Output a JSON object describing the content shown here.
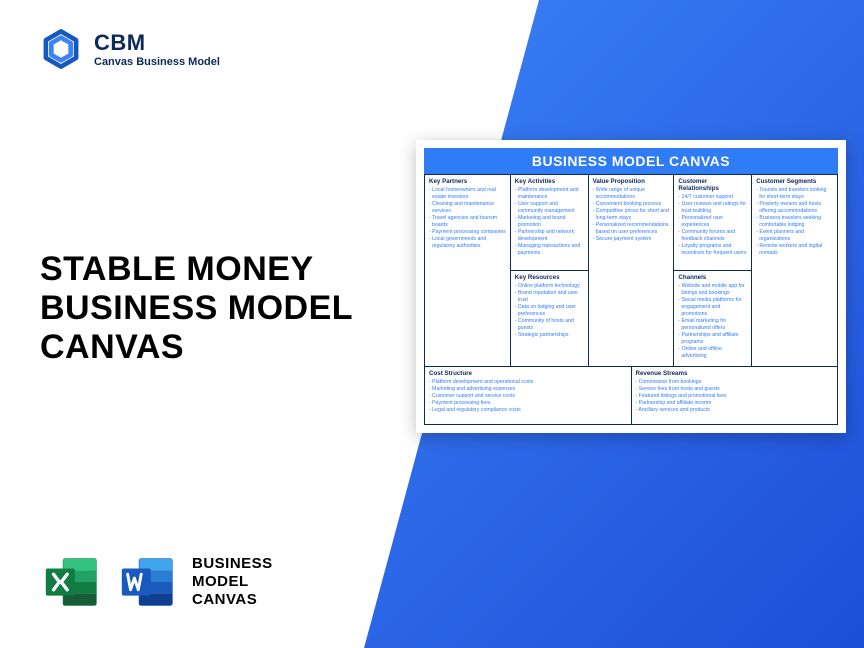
{
  "logo": {
    "abbr": "CBM",
    "subtitle": "Canvas Business Model"
  },
  "title": {
    "line1": "STABLE MONEY",
    "line2": "BUSINESS MODEL",
    "line3": "CANVAS"
  },
  "bottom_label": {
    "line1": "BUSINESS",
    "line2": "MODEL",
    "line3": "CANVAS"
  },
  "colors": {
    "brand_dark": "#0b2a5b",
    "accent": "#2f7cf6",
    "gradient_start": "#3b82f6",
    "gradient_end": "#1d4ed8",
    "excel_dark": "#107c41",
    "excel_light": "#21a366",
    "word_dark": "#185abd",
    "word_light": "#41a5ee"
  },
  "canvas": {
    "banner": "BUSINESS MODEL CANVAS",
    "sections": {
      "key_partners": {
        "title": "Key Partners",
        "items": [
          "Local homeowners and real estate investors",
          "Cleaning and maintenance services",
          "Travel agencies and tourism boards",
          "Payment processing companies",
          "Local governments and regulatory authorities"
        ]
      },
      "key_activities": {
        "title": "Key Activities",
        "items": [
          "Platform development and maintenance",
          "User support and community management",
          "Marketing and brand promotion",
          "Partnership and network development",
          "Managing transactions and payments"
        ]
      },
      "key_resources": {
        "title": "Key Resources",
        "items": [
          "Online platform technology",
          "Brand reputation and user trust",
          "Data on lodging and user preferences",
          "Community of hosts and guests",
          "Strategic partnerships"
        ]
      },
      "value_proposition": {
        "title": "Value Proposition",
        "items": [
          "Wide range of unique accommodations",
          "Convenient booking process",
          "Competitive prices for short and long-term stays",
          "Personalized recommendations based on user preferences",
          "Secure payment system"
        ]
      },
      "customer_relationships": {
        "title": "Customer Relationships",
        "items": [
          "24/7 customer support",
          "User reviews and ratings for trust-building",
          "Personalized user experiences",
          "Community forums and feedback channels",
          "Loyalty programs and incentives for frequent users"
        ]
      },
      "channels": {
        "title": "Channels",
        "items": [
          "Website and mobile app for listings and bookings",
          "Social media platforms for engagement and promotions",
          "Email marketing for personalized offers",
          "Partnerships and affiliate programs",
          "Online and offline advertising"
        ]
      },
      "customer_segments": {
        "title": "Customer Segments",
        "items": [
          "Tourists and travelers looking for short-term stays",
          "Property owners and hosts offering accommodations",
          "Business travelers seeking comfortable lodging",
          "Event planners and organizations",
          "Remote workers and digital nomads"
        ]
      },
      "cost_structure": {
        "title": "Cost Structure",
        "items": [
          "Platform development and operational costs",
          "Marketing and advertising expenses",
          "Customer support and service costs",
          "Payment processing fees",
          "Legal and regulatory compliance costs"
        ]
      },
      "revenue_streams": {
        "title": "Revenue Streams",
        "items": [
          "Commission from bookings",
          "Service fees from hosts and guests",
          "Featured listings and promotional fees",
          "Partnership and affiliate income",
          "Ancillary services and products"
        ]
      }
    }
  }
}
